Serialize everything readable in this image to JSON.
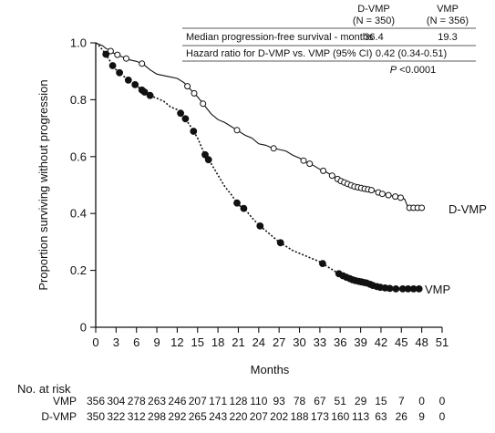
{
  "chart_data": {
    "type": "line",
    "title": "",
    "xlabel": "Months",
    "ylabel": "Proportion surviving without progression",
    "xlim": [
      0,
      51
    ],
    "ylim": [
      0,
      1.0
    ],
    "x_ticks": [
      0,
      3,
      6,
      9,
      12,
      15,
      18,
      21,
      24,
      27,
      30,
      33,
      36,
      39,
      42,
      45,
      48,
      51
    ],
    "y_ticks": [
      0,
      0.2,
      0.4,
      0.6,
      0.8,
      1.0
    ],
    "y_tick_labels": [
      "0",
      "0.2",
      "0.4",
      "0.6",
      "0.8",
      "1.0"
    ],
    "series": [
      {
        "name": "D-VMP",
        "line_style": "solid",
        "marker": "open-circle",
        "points": [
          [
            0,
            1.0
          ],
          [
            0.5,
            0.995
          ],
          [
            1,
            0.99
          ],
          [
            1.5,
            0.98
          ],
          [
            2,
            0.975
          ],
          [
            2.5,
            0.965
          ],
          [
            3,
            0.96
          ],
          [
            4,
            0.95
          ],
          [
            5,
            0.94
          ],
          [
            6,
            0.935
          ],
          [
            7,
            0.925
          ],
          [
            8,
            0.905
          ],
          [
            9,
            0.89
          ],
          [
            10,
            0.885
          ],
          [
            11,
            0.88
          ],
          [
            12,
            0.875
          ],
          [
            13,
            0.86
          ],
          [
            14,
            0.835
          ],
          [
            15,
            0.81
          ],
          [
            16,
            0.78
          ],
          [
            17,
            0.75
          ],
          [
            18,
            0.73
          ],
          [
            19,
            0.72
          ],
          [
            20,
            0.705
          ],
          [
            21,
            0.69
          ],
          [
            22,
            0.675
          ],
          [
            23,
            0.665
          ],
          [
            24,
            0.645
          ],
          [
            25,
            0.64
          ],
          [
            26,
            0.63
          ],
          [
            27,
            0.625
          ],
          [
            28,
            0.62
          ],
          [
            29,
            0.605
          ],
          [
            30,
            0.595
          ],
          [
            31,
            0.58
          ],
          [
            32,
            0.57
          ],
          [
            33,
            0.555
          ],
          [
            34,
            0.545
          ],
          [
            35,
            0.53
          ],
          [
            36,
            0.515
          ],
          [
            37,
            0.505
          ],
          [
            38,
            0.495
          ],
          [
            39,
            0.49
          ],
          [
            40,
            0.485
          ],
          [
            41,
            0.48
          ],
          [
            42,
            0.47
          ],
          [
            43,
            0.465
          ],
          [
            44,
            0.46
          ],
          [
            45,
            0.455
          ],
          [
            45.5,
            0.45
          ],
          [
            46,
            0.42
          ],
          [
            47,
            0.42
          ],
          [
            48,
            0.42
          ]
        ],
        "marker_x": [
          2.2,
          3.2,
          4.5,
          6.8,
          13.5,
          14.5,
          15.8,
          20.8,
          26.2,
          30.6,
          31.5,
          33.5,
          34.8,
          35.6,
          36.1,
          36.6,
          37.1,
          37.6,
          38.1,
          38.6,
          39.1,
          39.6,
          40.1,
          40.6,
          41.6,
          42.2,
          43.1,
          44.1,
          44.9,
          46.2,
          46.8,
          47.4,
          48.0
        ]
      },
      {
        "name": "VMP",
        "line_style": "dotted",
        "marker": "filled-circle",
        "points": [
          [
            0,
            1.0
          ],
          [
            0.5,
            0.99
          ],
          [
            1,
            0.975
          ],
          [
            1.5,
            0.96
          ],
          [
            2,
            0.94
          ],
          [
            2.5,
            0.92
          ],
          [
            3,
            0.905
          ],
          [
            4,
            0.885
          ],
          [
            5,
            0.865
          ],
          [
            6,
            0.85
          ],
          [
            7,
            0.83
          ],
          [
            8,
            0.815
          ],
          [
            9,
            0.805
          ],
          [
            10,
            0.795
          ],
          [
            11,
            0.775
          ],
          [
            12,
            0.765
          ],
          [
            13,
            0.74
          ],
          [
            14,
            0.705
          ],
          [
            15,
            0.665
          ],
          [
            16,
            0.61
          ],
          [
            17,
            0.575
          ],
          [
            18,
            0.535
          ],
          [
            19,
            0.495
          ],
          [
            20,
            0.465
          ],
          [
            21,
            0.43
          ],
          [
            22,
            0.415
          ],
          [
            23,
            0.385
          ],
          [
            24,
            0.36
          ],
          [
            25,
            0.34
          ],
          [
            26,
            0.32
          ],
          [
            27,
            0.3
          ],
          [
            28,
            0.285
          ],
          [
            29,
            0.27
          ],
          [
            30,
            0.26
          ],
          [
            31,
            0.25
          ],
          [
            32,
            0.24
          ],
          [
            33,
            0.23
          ],
          [
            34,
            0.215
          ],
          [
            35,
            0.2
          ],
          [
            36,
            0.185
          ],
          [
            37,
            0.175
          ],
          [
            38,
            0.165
          ],
          [
            39,
            0.16
          ],
          [
            40,
            0.155
          ],
          [
            41,
            0.145
          ],
          [
            42,
            0.14
          ],
          [
            43,
            0.137
          ],
          [
            44,
            0.135
          ],
          [
            45,
            0.135
          ],
          [
            46,
            0.135
          ],
          [
            47,
            0.135
          ],
          [
            48,
            0.135
          ]
        ],
        "marker_x": [
          1.5,
          2.5,
          3.5,
          4.8,
          5.8,
          6.8,
          7.2,
          8.0,
          12.5,
          13.2,
          14.4,
          16.1,
          16.6,
          20.8,
          21.8,
          24.2,
          27.2,
          33.4,
          35.8,
          36.4,
          36.9,
          37.4,
          37.8,
          38.2,
          38.7,
          39.1,
          39.5,
          39.9,
          40.4,
          40.8,
          41.4,
          41.9,
          42.6,
          43.3,
          44.2,
          45.2,
          46.0,
          46.8,
          47.6
        ]
      }
    ],
    "series_labels": [
      "D-VMP",
      "VMP"
    ],
    "legend": "none (direct labels at line ends)"
  },
  "inset_table": {
    "columns": [
      "D-VMP\n(N = 350)",
      "VMP\n(N = 356)"
    ],
    "col_d_line1": "D-VMP",
    "col_d_line2": "(N = 350)",
    "col_v_line1": "VMP",
    "col_v_line2": "(N = 356)",
    "row1_label": "Median progression-free survival - months",
    "row1_d": "36.4",
    "row1_v": "19.3",
    "row2_label": "Hazard ratio for D-VMP vs. VMP (95% CI)",
    "row2_value": "0.42 (0.34-0.51)",
    "p_symbol": "P",
    "p_text": " <0.0001"
  },
  "risk_table": {
    "title": "No. at risk",
    "rows": [
      {
        "label": "VMP",
        "values": [
          "356",
          "304",
          "278",
          "263",
          "246",
          "207",
          "171",
          "128",
          "110",
          "93",
          "78",
          "67",
          "51",
          "29",
          "15",
          "7",
          "0",
          "0"
        ]
      },
      {
        "label": "D-VMP",
        "values": [
          "350",
          "322",
          "312",
          "298",
          "292",
          "265",
          "243",
          "220",
          "207",
          "202",
          "188",
          "173",
          "160",
          "113",
          "63",
          "26",
          "9",
          "0"
        ]
      }
    ]
  }
}
